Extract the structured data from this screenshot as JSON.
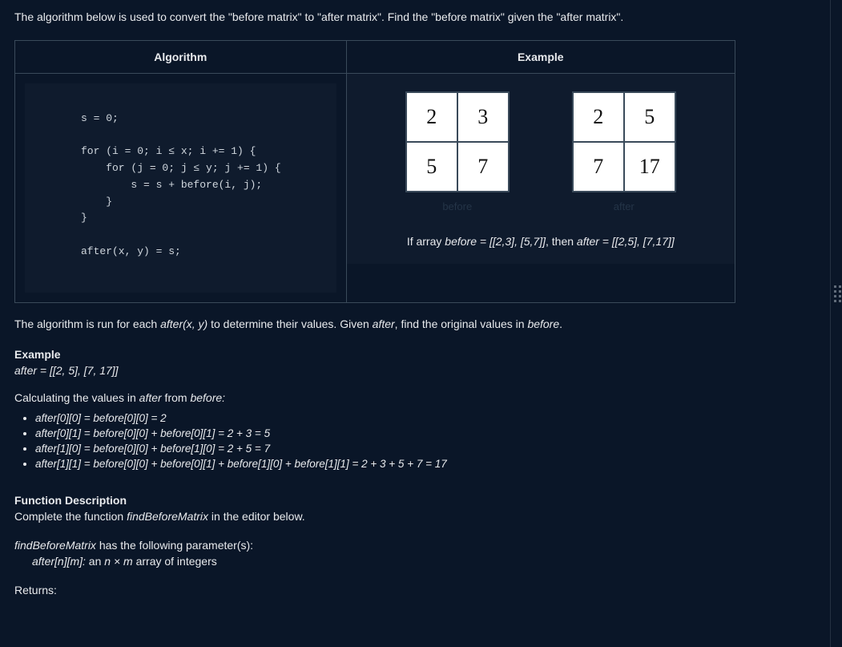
{
  "intro": "The algorithm below is used to convert the \"before matrix\" to \"after matrix\". Find the \"before matrix\" given the \"after matrix\".",
  "table": {
    "header_left": "Algorithm",
    "header_right": "Example"
  },
  "code": "s = 0;\n\nfor (i = 0; i ≤ x; i += 1) {\n    for (j = 0; j ≤ y; j += 1) {\n        s = s + before(i, j);\n    }\n}\n\nafter(x, y) = s;",
  "before_matrix": {
    "r0c0": "2",
    "r0c1": "3",
    "r1c0": "5",
    "r1c1": "7",
    "label": "before"
  },
  "after_matrix": {
    "r0c0": "2",
    "r0c1": "5",
    "r1c0": "7",
    "r1c1": "17",
    "label": "after"
  },
  "example_caption": {
    "pre": "If array ",
    "before_name": "before",
    "before_val": " = [[2,3], [5,7]]",
    "mid": ", then ",
    "after_name": "after",
    "after_val": " = [[2,5], [7,17]]"
  },
  "mid_text": {
    "t1": "The algorithm is run for each ",
    "em1": "after(x, y)",
    "t2": " to determine their values. Given ",
    "em2": "after",
    "t3": ", find the original values in ",
    "em3": "before",
    "t4": "."
  },
  "example_heading": "Example",
  "example_val": "after = [[2, 5], [7, 17]]",
  "calc_intro": {
    "t1": "Calculating the values in ",
    "em1": "after",
    "t2": " from ",
    "em2": "before:"
  },
  "calc": [
    "after[0][0] = before[0][0] = 2",
    "after[0][1] = before[0][0] + before[0][1] = 2 + 3 = 5",
    "after[1][0] = before[0][0] + before[1][0] = 2 + 5 = 7",
    "after[1][1] = before[0][0] + before[0][1] + before[1][0] + before[1][1] = 2 + 3 + 5 + 7 = 17"
  ],
  "func_heading": "Function Description",
  "func_desc": {
    "t1": "Complete the function ",
    "em": "findBeforeMatrix",
    "t2": " in the editor below."
  },
  "param_intro": {
    "em": "findBeforeMatrix",
    "t": " has the following parameter(s):"
  },
  "param": {
    "em1": "after[n][m]:",
    "t1": " an ",
    "em2": "n × m",
    "t2": " array of integers"
  },
  "returns": "Returns:"
}
